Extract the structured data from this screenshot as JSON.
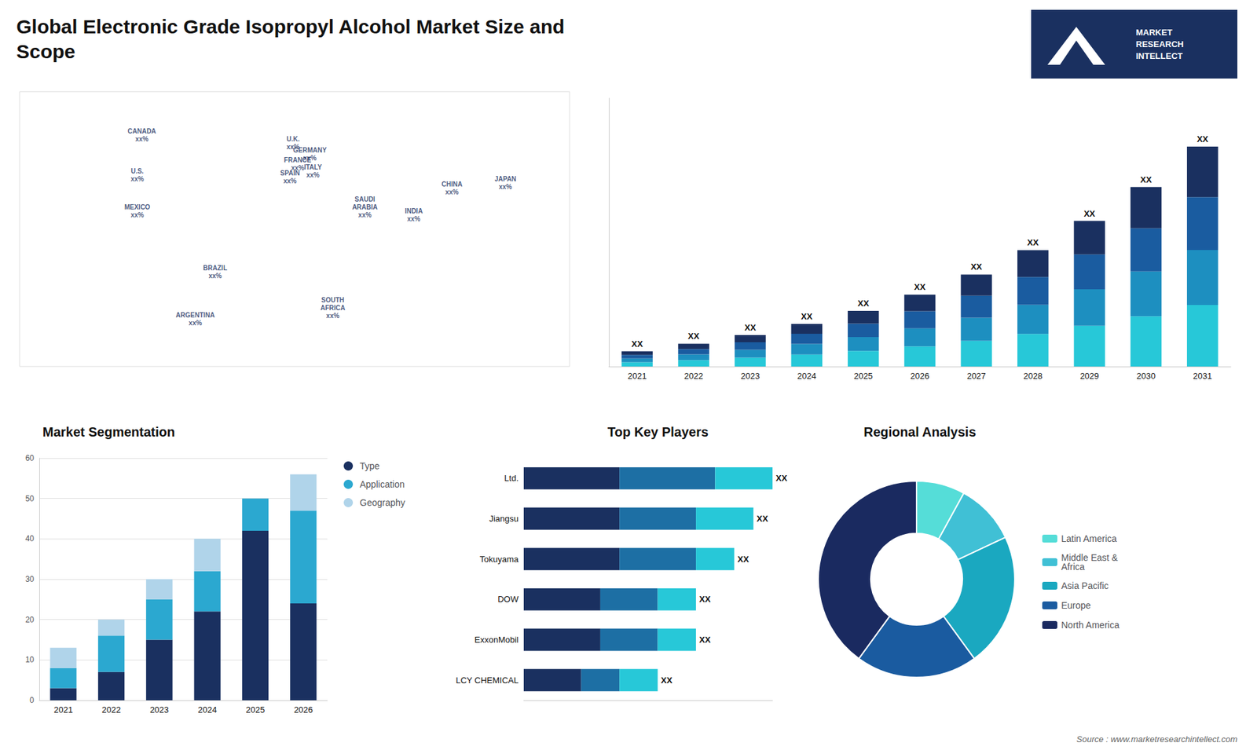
{
  "title": "Global Electronic Grade Isopropyl Alcohol Market Size and\nScope",
  "annotations": [
    "MARKET\nRESEARCH\nINTELLECT",
    "Source : www.marketresearchintellect.com"
  ],
  "chart_data": [
    {
      "type": "scatter",
      "x": [
        -100,
        -103,
        -103,
        -52,
        -65,
        -1,
        2,
        10,
        -3,
        12,
        46,
        25,
        103,
        78,
        138
      ],
      "values": [
        62,
        41,
        22,
        -10,
        -35,
        58,
        47,
        52,
        40,
        43,
        24,
        -29,
        34,
        20,
        37
      ],
      "annotations": [
        "CANADA\nxx%",
        "U.S.\nxx%",
        "MEXICO\nxx%",
        "BRAZIL\nxx%",
        "ARGENTINA\nxx%",
        "U.K.\nxx%",
        "FRANCE\nxx%",
        "GERMANY\nxx%",
        "SPAIN\nxx%",
        "ITALY\nxx%",
        "SAUDI\nARABIA\nxx%",
        "SOUTH\nAFRICA\nxx%",
        "CHINA\nxx%",
        "INDIA\nxx%",
        "JAPAN\nxx%"
      ],
      "color": "#1a3060",
      "xlim": [
        -180,
        180
      ],
      "ylim": [
        -60,
        85
      ],
      "tick_labels": false,
      "grid": false
    },
    {
      "type": "bar",
      "stacked": true,
      "categories": [
        "2021",
        "2022",
        "2023",
        "2024",
        "2025",
        "2026",
        "2027",
        "2028",
        "2029",
        "2030",
        "2031"
      ],
      "series": [
        {
          "color": "#27c8d8",
          "values": [
            0.84,
            1.26,
            1.736,
            2.352,
            3.08,
            3.976,
            5.096,
            6.44,
            8.064,
            9.94,
            12.18
          ]
        },
        {
          "color": "#1d8fc0",
          "values": [
            0.75,
            1.125,
            1.55,
            2.1,
            2.75,
            3.55,
            4.55,
            5.75,
            7.2,
            8.875,
            10.875
          ]
        },
        {
          "color": "#1a5ca0",
          "values": [
            0.72,
            1.08,
            1.488,
            2.016,
            2.64,
            3.408,
            4.368,
            5.52,
            6.912,
            8.52,
            10.44
          ]
        },
        {
          "color": "#1a3060",
          "values": [
            0.69,
            1.035,
            1.426,
            1.932,
            2.53,
            3.266,
            4.186,
            5.29,
            6.624,
            8.165,
            10.005
          ]
        }
      ],
      "annotations": [
        "XX",
        "XX",
        "XX",
        "XX",
        "XX",
        "XX",
        "XX",
        "XX",
        "XX",
        "XX",
        "XX"
      ],
      "ylim": [
        0,
        53.07
      ],
      "tick_labels": "x",
      "grid": false
    },
    {
      "type": "bar",
      "stacked": true,
      "title": "Market Segmentation",
      "categories": [
        "2021",
        "2022",
        "2023",
        "2024",
        "2025",
        "2026"
      ],
      "series": [
        {
          "name": "Type",
          "color": "#1a3060",
          "values": [
            3,
            7,
            15,
            22,
            42,
            24
          ]
        },
        {
          "name": "Application",
          "color": "#2ba8d0",
          "values": [
            5,
            9,
            10,
            10,
            8,
            23
          ]
        },
        {
          "name": "Geography",
          "color": "#b0d4ea",
          "values": [
            5,
            4,
            5,
            8,
            0,
            9
          ]
        }
      ],
      "ylim": [
        0,
        60
      ],
      "yticks": [
        0,
        10,
        20,
        30,
        40,
        50,
        60
      ],
      "grid": true,
      "legend": "right",
      "marker": "circle"
    },
    {
      "type": "bar",
      "stacked": true,
      "orientation": "horizontal",
      "title": "Top Key Players",
      "categories": [
        "Ltd.",
        "Jiangsu",
        "Tokuyama",
        "DOW",
        "ExxonMobil",
        "LCY CHEMICAL"
      ],
      "series": [
        {
          "color": "#1a3060",
          "values": [
            5,
            5,
            5,
            4,
            4,
            3
          ]
        },
        {
          "color": "#1d6fa4",
          "values": [
            5,
            4,
            4,
            3,
            3,
            2
          ]
        },
        {
          "color": "#27c8d8",
          "values": [
            3,
            3,
            2,
            2,
            2,
            2
          ]
        }
      ],
      "annotations": [
        "XX",
        "XX",
        "XX",
        "XX",
        "XX",
        "XX"
      ],
      "xlim": [
        0,
        13
      ],
      "tick_labels": "y",
      "grid": false
    },
    {
      "type": "donut",
      "title": "Regional Analysis",
      "categories": [
        "Latin America",
        "Middle East &\nAfrica",
        "Asia Pacific",
        "Europe",
        "North America"
      ],
      "values": [
        8,
        10,
        22,
        20,
        40
      ],
      "colors": [
        "#55ddd8",
        "#40c0d5",
        "#1aa8c0",
        "#1a5ba0",
        "#1a2a60"
      ],
      "legend": "right"
    }
  ]
}
